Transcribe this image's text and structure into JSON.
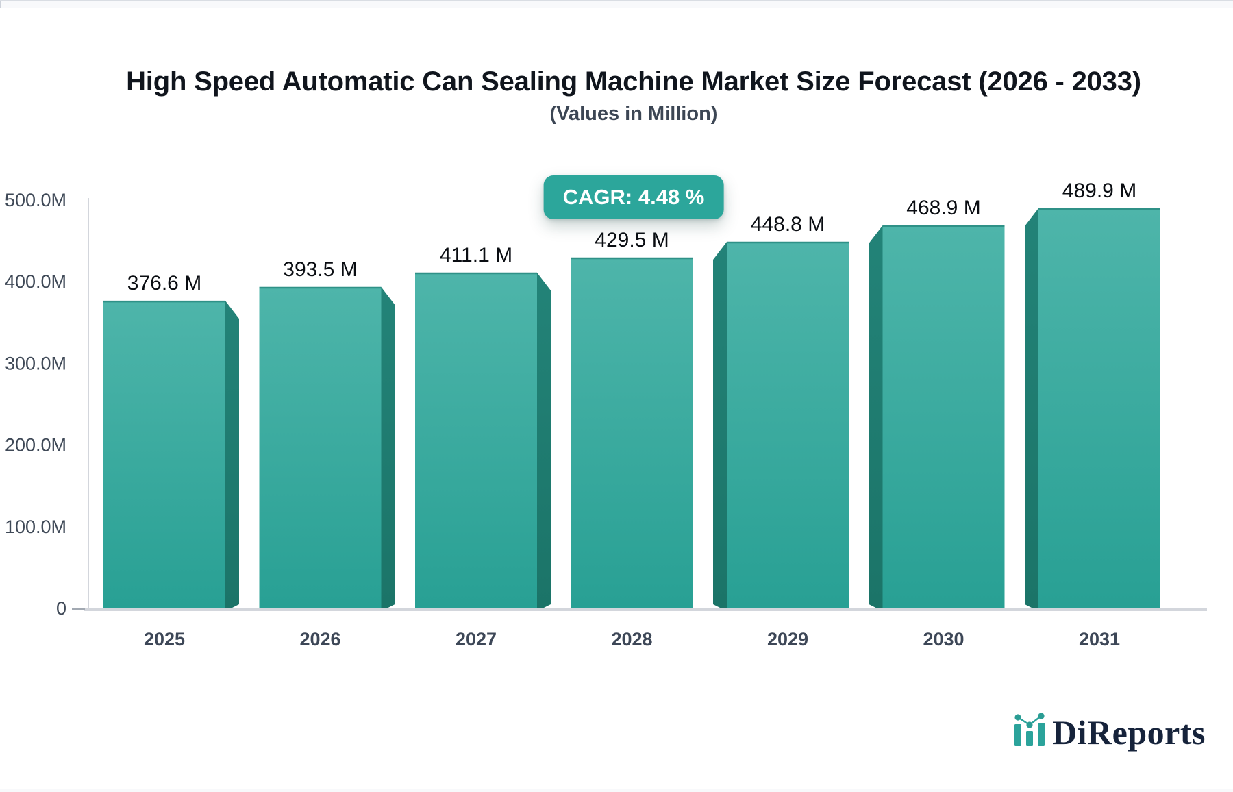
{
  "header": {
    "title": "High Speed Automatic Can Sealing Machine Market Size Forecast (2026 - 2033)",
    "subtitle": "(Values in Million)"
  },
  "badge": {
    "label": "CAGR: 4.48 %"
  },
  "logo": {
    "brand": "DiReports",
    "icon": "bar-line-chart-icon"
  },
  "chart_data": {
    "type": "bar",
    "title": "High Speed Automatic Can Sealing Machine Market Size Forecast (2026 - 2033)",
    "subtitle": "(Values in Million)",
    "unit": "Million",
    "cagr_label": "CAGR: 4.48 %",
    "categories": [
      "2025",
      "2026",
      "2027",
      "2028",
      "2029",
      "2030",
      "2031"
    ],
    "values": [
      376.6,
      393.5,
      411.1,
      429.5,
      448.8,
      468.9,
      489.9
    ],
    "value_labels": [
      "376.6 M",
      "393.5 M",
      "411.1 M",
      "429.5 M",
      "448.8 M",
      "468.9 M",
      "489.9 M"
    ],
    "xlabel": "",
    "ylabel": "",
    "ylim": [
      0,
      500
    ],
    "yticks": [
      0,
      100,
      200,
      300,
      400,
      500
    ],
    "ytick_labels": [
      "0",
      "100.0M",
      "200.0M",
      "300.0M",
      "400.0M",
      "500.0M"
    ],
    "grid": false,
    "legend": false,
    "bar_style": "3d-bevel",
    "colors": {
      "bar_front_top": "#4eb5aa",
      "bar_front_bottom": "#28a094",
      "bar_side_top": "#238378",
      "bar_side_bottom": "#1b7468",
      "bar_top_edge": "#2f9187",
      "axis_line": "#d3d6dc",
      "tick_dash": "#a2a9b2",
      "axis_text": "#3f4957",
      "value_text": "#0a0d12",
      "badge_bg": "#2ca69b",
      "brand_teal": "#2ba39b",
      "brand_navy": "#16233b"
    }
  }
}
